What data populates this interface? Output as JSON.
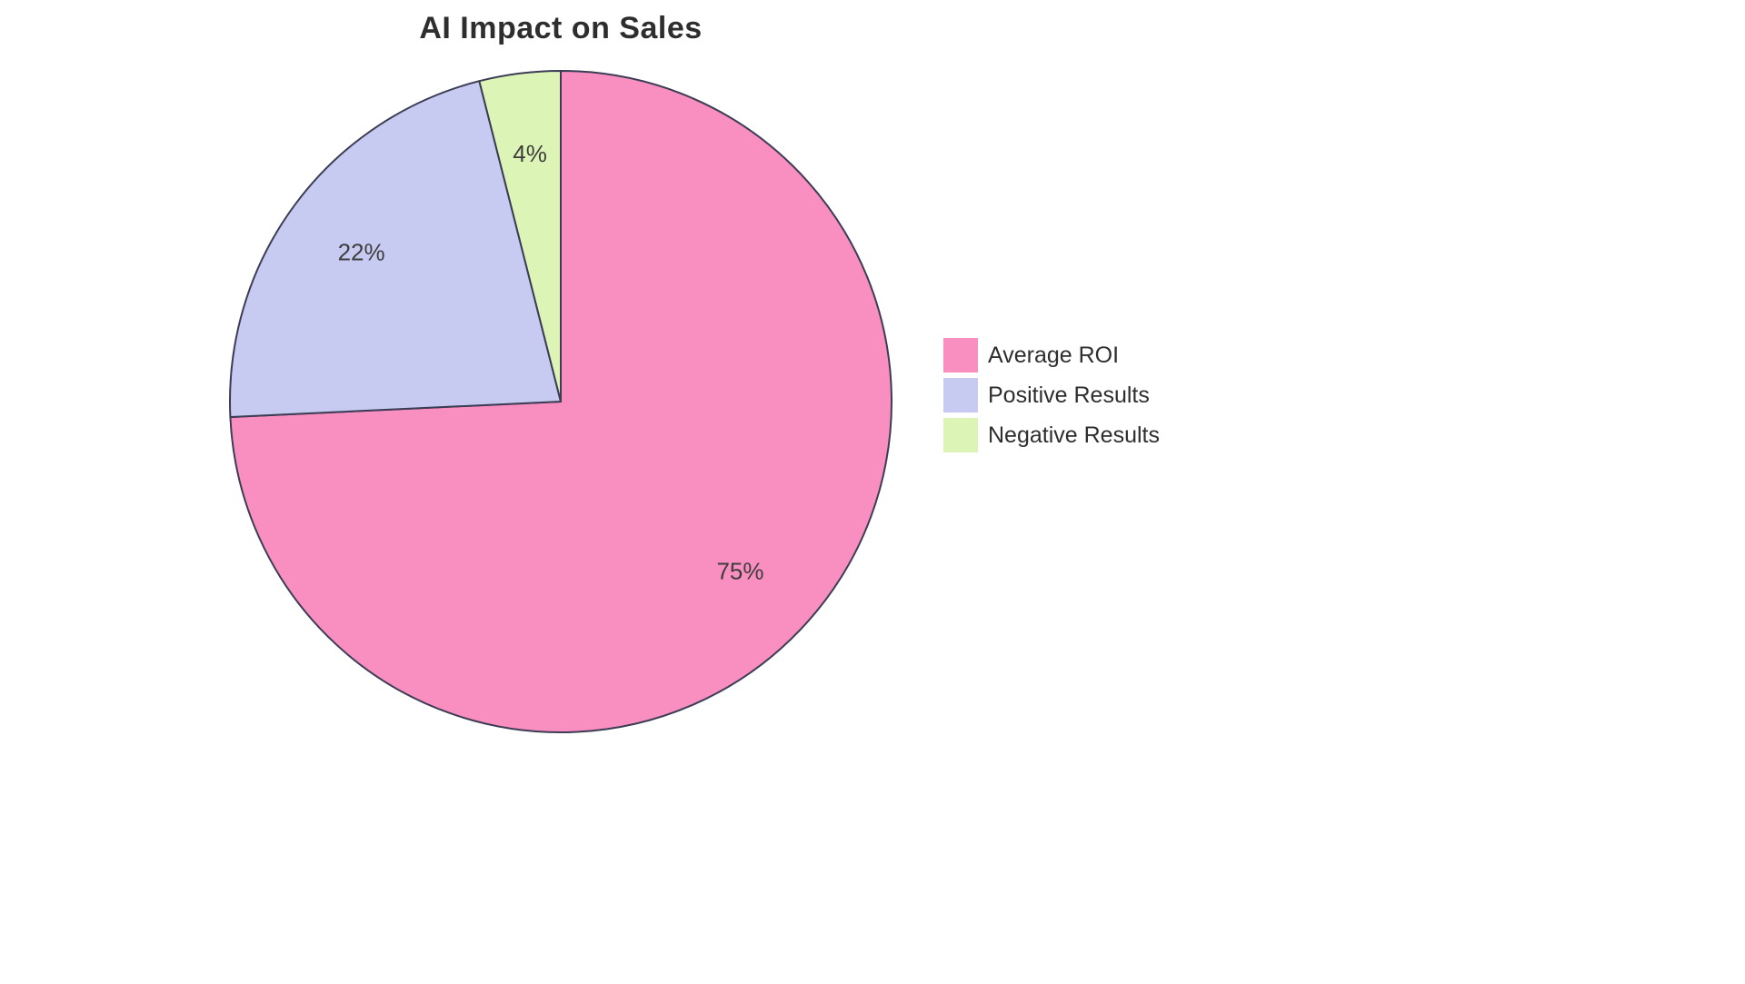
{
  "page": {
    "background": "#ffffff"
  },
  "chart_data": {
    "type": "pie",
    "title": "AI Impact on Sales",
    "legend_position": "right",
    "start_angle_deg": 0,
    "direction": "clockwise",
    "stroke_color": "#3c3c55",
    "label_color": "#3d3d3d",
    "title_color": "#2e2e2e",
    "slices": [
      {
        "label": "Average ROI",
        "value": 75,
        "display": "75%",
        "color": "#f98ec0"
      },
      {
        "label": "Positive Results",
        "value": 22,
        "display": "22%",
        "color": "#c7cbf1"
      },
      {
        "label": "Negative Results",
        "value": 4,
        "display": "4%",
        "color": "#dcf5b6"
      }
    ]
  }
}
